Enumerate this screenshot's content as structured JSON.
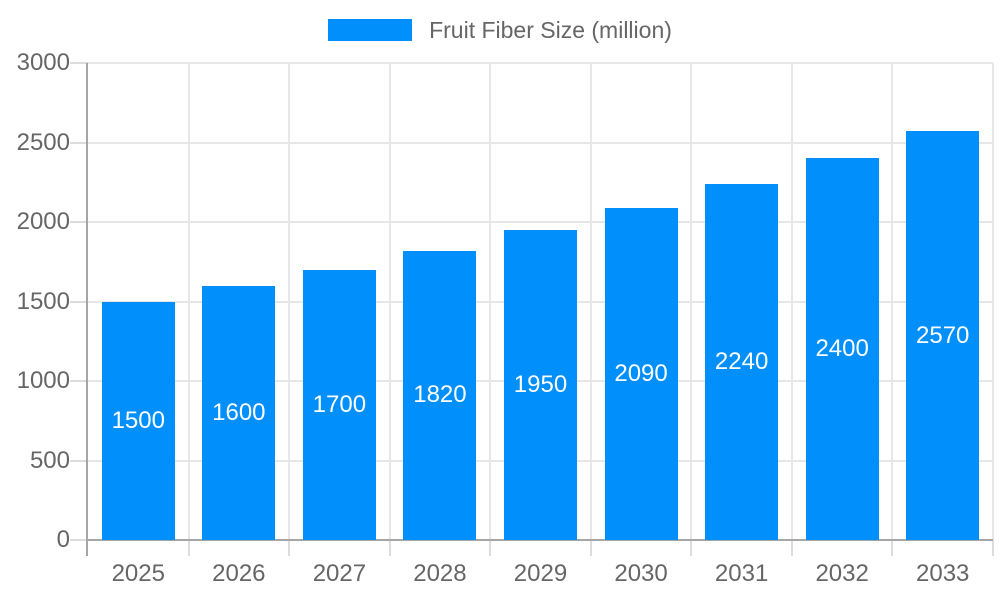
{
  "legend": {
    "label": "Fruit Fiber Size (million)"
  },
  "chart_data": {
    "type": "bar",
    "title": "Fruit Fiber Size (million)",
    "xlabel": "",
    "ylabel": "",
    "categories": [
      "2025",
      "2026",
      "2027",
      "2028",
      "2029",
      "2030",
      "2031",
      "2032",
      "2033"
    ],
    "series": [
      {
        "name": "Fruit Fiber Size (million)",
        "values": [
          1500,
          1600,
          1700,
          1820,
          1950,
          2090,
          2240,
          2400,
          2570
        ]
      }
    ],
    "bar_value_labels": [
      "1500",
      "1600",
      "1700",
      "1820",
      "1950",
      "2090",
      "2240",
      "2400",
      "2570"
    ],
    "ylim": [
      0,
      3000
    ],
    "ytick_step": 500,
    "yticks": [
      0,
      500,
      1000,
      1500,
      2000,
      2500,
      3000
    ],
    "ytick_labels": [
      "0",
      "500",
      "1000",
      "1500",
      "2000",
      "2500",
      "3000"
    ],
    "grid": true,
    "legend_position": "top",
    "colors": {
      "bar": "#008FFB",
      "bar_label_text": "#FFFFFF",
      "axis_text": "#666666",
      "legend_text": "#666666",
      "grid_line": "#E7E7E7",
      "tick_line": "#DCDCDC",
      "axis_line": "#A6A6A6",
      "background": "#FFFFFF"
    }
  }
}
